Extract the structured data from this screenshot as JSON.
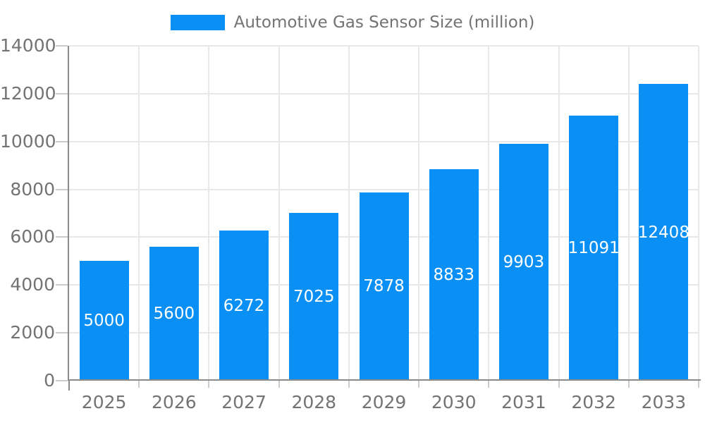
{
  "chart_data": {
    "type": "bar",
    "title": "Automotive Gas Sensor Size (million)",
    "categories": [
      "2025",
      "2026",
      "2027",
      "2028",
      "2029",
      "2030",
      "2031",
      "2032",
      "2033"
    ],
    "values": [
      5000,
      5600,
      6272,
      7025,
      7878,
      8833,
      9903,
      11091,
      12408
    ],
    "xlabel": "",
    "ylabel": "",
    "ylim": [
      0,
      14000
    ],
    "y_ticks": [
      0,
      2000,
      4000,
      6000,
      8000,
      10000,
      12000,
      14000
    ],
    "grid": true,
    "legend_position": "top",
    "bar_value_labels_inside": true
  },
  "colors": {
    "bar": "#0a90f5",
    "bar_label_text": "#ffffff",
    "axis_text": "#737373",
    "grid_line": "#e8e8e8",
    "axis_line": "#8a8a8a",
    "tick_line": "#cccccc"
  }
}
